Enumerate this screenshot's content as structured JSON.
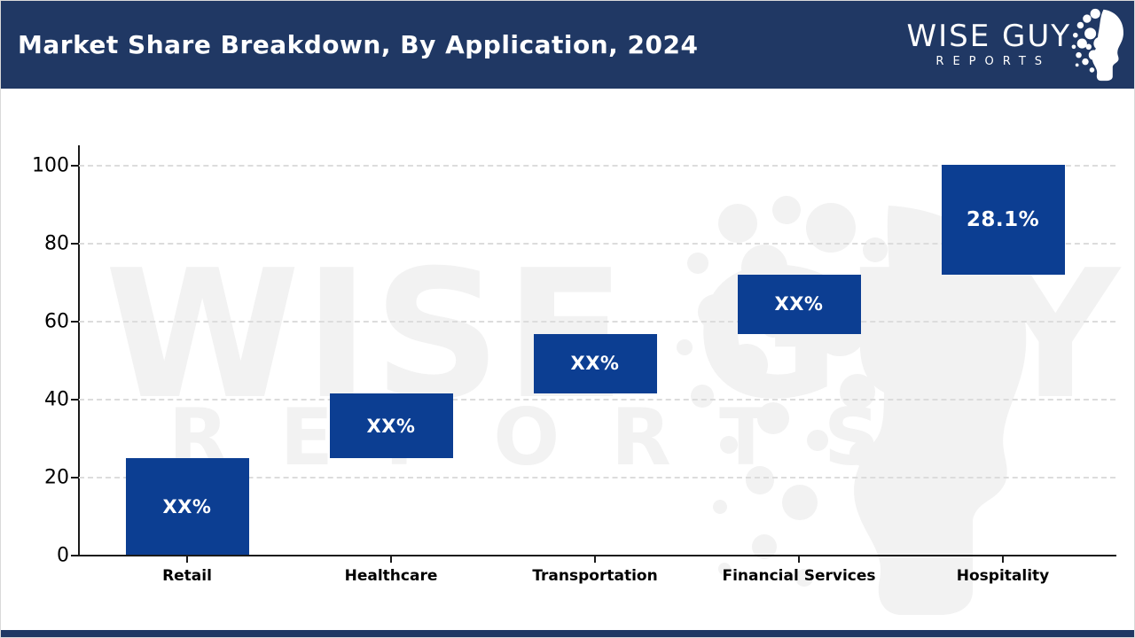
{
  "header": {
    "title": "Market Share Breakdown, By Application, 2024",
    "logo": {
      "wordmark": "WISE GUY",
      "subtext": "REPORTS"
    }
  },
  "watermark": {
    "wordmark": "WISE GUY",
    "subtext": "REPORTS"
  },
  "colors": {
    "header_bg": "#203864",
    "footer_bg": "#203864",
    "bar": "#0c3e92",
    "bar_label_text": "#ffffff",
    "grid": "#dcdcdc",
    "axis": "#1a1a1a",
    "watermark": "#f2f2f2"
  },
  "chart_data": {
    "type": "bar",
    "subtype": "waterfall-floating-bars",
    "title": "Market Share Breakdown, By Application, 2024",
    "categories": [
      "Retail",
      "Healthcare",
      "Transportation",
      "Financial Services",
      "Hospitality"
    ],
    "segments": [
      {
        "category": "Retail",
        "start": 0,
        "end": 24.7,
        "size_pct": 24.7,
        "label": "XX%"
      },
      {
        "category": "Healthcare",
        "start": 24.7,
        "end": 41.4,
        "size_pct": 16.7,
        "label": "XX%"
      },
      {
        "category": "Transportation",
        "start": 41.4,
        "end": 56.6,
        "size_pct": 15.2,
        "label": "XX%"
      },
      {
        "category": "Financial Services",
        "start": 56.6,
        "end": 71.9,
        "size_pct": 15.3,
        "label": "XX%"
      },
      {
        "category": "Hospitality",
        "start": 71.9,
        "end": 100,
        "size_pct": 28.1,
        "label": "28.1%"
      }
    ],
    "xlabel": "",
    "ylabel": "",
    "yticks": [
      0,
      20,
      40,
      60,
      80,
      100
    ],
    "ylim": [
      0,
      105
    ],
    "grid": "horizontal-dashed",
    "legend": "none",
    "bar_color": "#0c3e92"
  }
}
